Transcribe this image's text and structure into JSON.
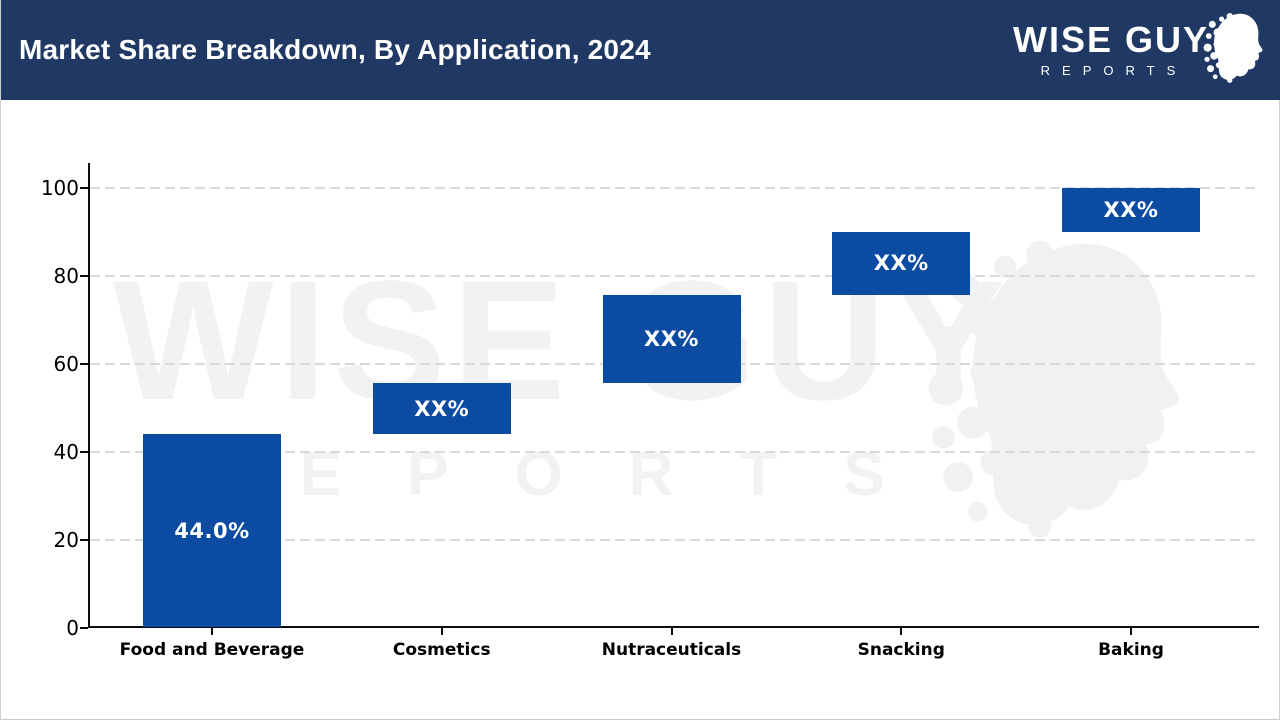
{
  "header": {
    "title": "Market Share Breakdown, By Application, 2024",
    "bg_color": "#1f3864",
    "logo": {
      "primary": "WISE GUY",
      "secondary": "REPORTS"
    }
  },
  "watermark": {
    "primary": "WISE GUY",
    "secondary": "REPORTS"
  },
  "chart_data": {
    "type": "bar",
    "subtype": "waterfall",
    "title": "Market Share Breakdown, By Application, 2024",
    "categories": [
      "Food and Beverage",
      "Cosmetics",
      "Nutraceuticals",
      "Snacking",
      "Baking"
    ],
    "series": [
      {
        "name": "Market Share",
        "segments": [
          {
            "category": "Food and Beverage",
            "start": 0,
            "end": 44,
            "label": "44.0%"
          },
          {
            "category": "Cosmetics",
            "start": 44,
            "end": 55.5,
            "label": "XX%"
          },
          {
            "category": "Nutraceuticals",
            "start": 55.5,
            "end": 75.5,
            "label": "XX%"
          },
          {
            "category": "Snacking",
            "start": 75.5,
            "end": 90,
            "label": "XX%"
          },
          {
            "category": "Baking",
            "start": 90,
            "end": 100,
            "label": "XX%"
          }
        ]
      }
    ],
    "xlabel": "",
    "ylabel": "",
    "yticks": [
      0,
      20,
      40,
      60,
      80,
      100
    ],
    "ylim": [
      0,
      105.5
    ],
    "grid": true,
    "grid_style": "dashed",
    "legend": false,
    "bar_color": "#0b4ba1",
    "bar_label_color": "#ffffff",
    "axis_color": "#0d0d0d"
  }
}
